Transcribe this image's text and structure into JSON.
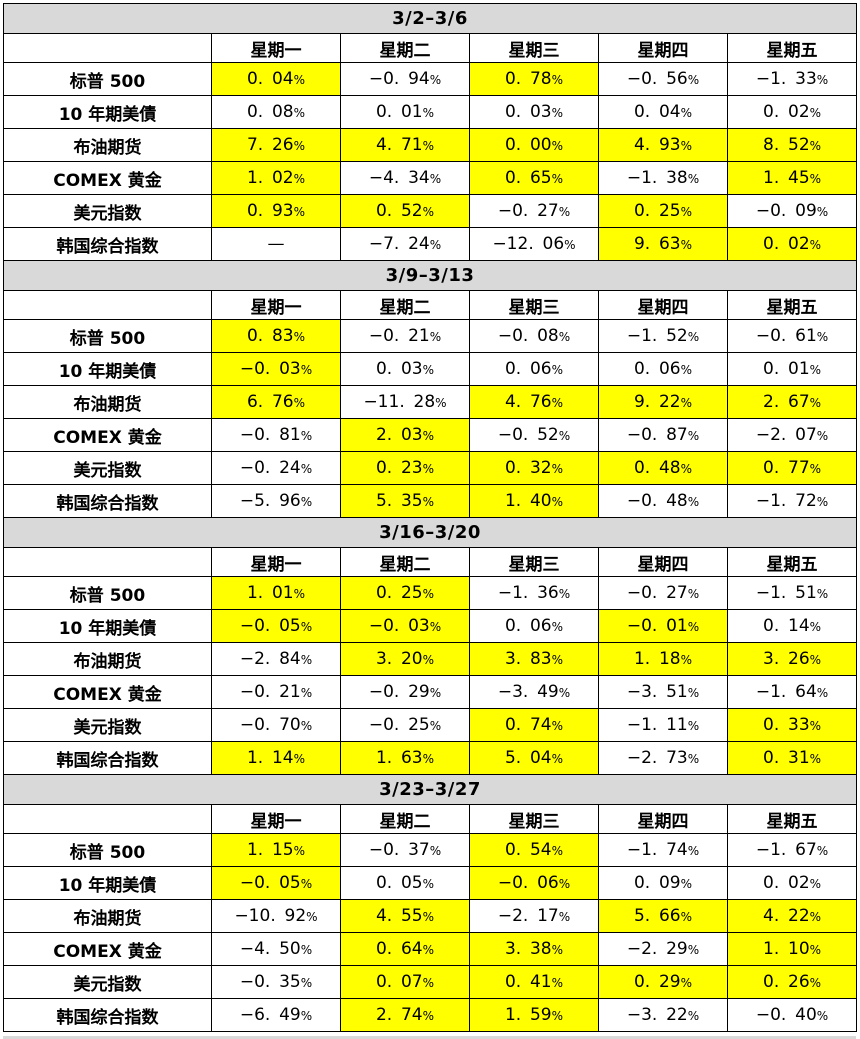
{
  "page": {
    "background": "#ffffff"
  },
  "table": {
    "border_color": "#000000",
    "title_bg": "#d9d9d9",
    "highlight_color": "#ffff00",
    "dash_placeholder": "—",
    "corner_label": "",
    "day_headers": [
      "星期一",
      "星期二",
      "星期三",
      "星期四",
      "星期五"
    ],
    "row_labels": [
      "标普 500",
      "10 年期美債",
      "布油期货",
      "COMEX 黄金",
      "美元指数",
      "韩国综合指数"
    ],
    "value_suffix": "%"
  },
  "chart_data": [
    {
      "type": "table",
      "title": "3/2–3/6",
      "columns": [
        "星期一",
        "星期二",
        "星期三",
        "星期四",
        "星期五"
      ],
      "rows": [
        {
          "label": "标普 500",
          "values": [
            0.04,
            -0.94,
            0.78,
            -0.56,
            -1.33
          ],
          "highlight": [
            1,
            0,
            1,
            0,
            0
          ]
        },
        {
          "label": "10 年期美債",
          "values": [
            0.08,
            0.01,
            0.03,
            0.04,
            0.02
          ],
          "highlight": [
            0,
            0,
            0,
            0,
            0
          ]
        },
        {
          "label": "布油期货",
          "values": [
            7.26,
            4.71,
            0.0,
            4.93,
            8.52
          ],
          "highlight": [
            1,
            1,
            1,
            1,
            1
          ]
        },
        {
          "label": "COMEX 黄金",
          "values": [
            1.02,
            -4.34,
            0.65,
            -1.38,
            1.45
          ],
          "highlight": [
            1,
            0,
            1,
            0,
            1
          ]
        },
        {
          "label": "美元指数",
          "values": [
            0.93,
            0.52,
            -0.27,
            0.25,
            -0.09
          ],
          "highlight": [
            1,
            1,
            0,
            1,
            0
          ]
        },
        {
          "label": "韩国综合指数",
          "values": [
            null,
            -7.24,
            -12.06,
            9.63,
            0.02
          ],
          "highlight": [
            0,
            0,
            0,
            1,
            1
          ]
        }
      ]
    },
    {
      "type": "table",
      "title": "3/9–3/13",
      "columns": [
        "星期一",
        "星期二",
        "星期三",
        "星期四",
        "星期五"
      ],
      "rows": [
        {
          "label": "标普 500",
          "values": [
            0.83,
            -0.21,
            -0.08,
            -1.52,
            -0.61
          ],
          "highlight": [
            1,
            0,
            0,
            0,
            0
          ]
        },
        {
          "label": "10 年期美債",
          "values": [
            -0.03,
            0.03,
            0.06,
            0.06,
            0.01
          ],
          "highlight": [
            1,
            0,
            0,
            0,
            0
          ]
        },
        {
          "label": "布油期货",
          "values": [
            6.76,
            -11.28,
            4.76,
            9.22,
            2.67
          ],
          "highlight": [
            1,
            0,
            1,
            1,
            1
          ]
        },
        {
          "label": "COMEX 黄金",
          "values": [
            -0.81,
            2.03,
            -0.52,
            -0.87,
            -2.07
          ],
          "highlight": [
            0,
            1,
            0,
            0,
            0
          ]
        },
        {
          "label": "美元指数",
          "values": [
            -0.24,
            0.23,
            0.32,
            0.48,
            0.77
          ],
          "highlight": [
            0,
            1,
            1,
            1,
            1
          ]
        },
        {
          "label": "韩国综合指数",
          "values": [
            -5.96,
            5.35,
            1.4,
            -0.48,
            -1.72
          ],
          "highlight": [
            0,
            1,
            1,
            0,
            0
          ]
        }
      ]
    },
    {
      "type": "table",
      "title": "3/16–3/20",
      "columns": [
        "星期一",
        "星期二",
        "星期三",
        "星期四",
        "星期五"
      ],
      "rows": [
        {
          "label": "标普 500",
          "values": [
            1.01,
            0.25,
            -1.36,
            -0.27,
            -1.51
          ],
          "highlight": [
            1,
            1,
            0,
            0,
            0
          ]
        },
        {
          "label": "10 年期美債",
          "values": [
            -0.05,
            -0.03,
            0.06,
            -0.01,
            0.14
          ],
          "highlight": [
            1,
            1,
            0,
            1,
            0
          ]
        },
        {
          "label": "布油期货",
          "values": [
            -2.84,
            3.2,
            3.83,
            1.18,
            3.26
          ],
          "highlight": [
            0,
            1,
            1,
            1,
            1
          ]
        },
        {
          "label": "COMEX 黄金",
          "values": [
            -0.21,
            -0.29,
            -3.49,
            -3.51,
            -1.64
          ],
          "highlight": [
            0,
            0,
            0,
            0,
            0
          ]
        },
        {
          "label": "美元指数",
          "values": [
            -0.7,
            -0.25,
            0.74,
            -1.11,
            0.33
          ],
          "highlight": [
            0,
            0,
            1,
            0,
            1
          ]
        },
        {
          "label": "韩国综合指数",
          "values": [
            1.14,
            1.63,
            5.04,
            -2.73,
            0.31
          ],
          "highlight": [
            1,
            1,
            1,
            0,
            1
          ]
        }
      ]
    },
    {
      "type": "table",
      "title": "3/23–3/27",
      "columns": [
        "星期一",
        "星期二",
        "星期三",
        "星期四",
        "星期五"
      ],
      "rows": [
        {
          "label": "标普 500",
          "values": [
            1.15,
            -0.37,
            0.54,
            -1.74,
            -1.67
          ],
          "highlight": [
            1,
            0,
            1,
            0,
            0
          ]
        },
        {
          "label": "10 年期美債",
          "values": [
            -0.05,
            0.05,
            -0.06,
            0.09,
            0.02
          ],
          "highlight": [
            1,
            0,
            1,
            0,
            0
          ]
        },
        {
          "label": "布油期货",
          "values": [
            -10.92,
            4.55,
            -2.17,
            5.66,
            4.22
          ],
          "highlight": [
            0,
            1,
            0,
            1,
            1
          ]
        },
        {
          "label": "COMEX 黄金",
          "values": [
            -4.5,
            0.64,
            3.38,
            -2.29,
            1.1
          ],
          "highlight": [
            0,
            1,
            1,
            0,
            1
          ]
        },
        {
          "label": "美元指数",
          "values": [
            -0.35,
            0.07,
            0.41,
            0.29,
            0.26
          ],
          "highlight": [
            0,
            1,
            1,
            1,
            1
          ]
        },
        {
          "label": "韩国综合指数",
          "values": [
            -6.49,
            2.74,
            1.59,
            -3.22,
            -0.4
          ],
          "highlight": [
            0,
            1,
            1,
            0,
            0
          ]
        }
      ]
    }
  ]
}
